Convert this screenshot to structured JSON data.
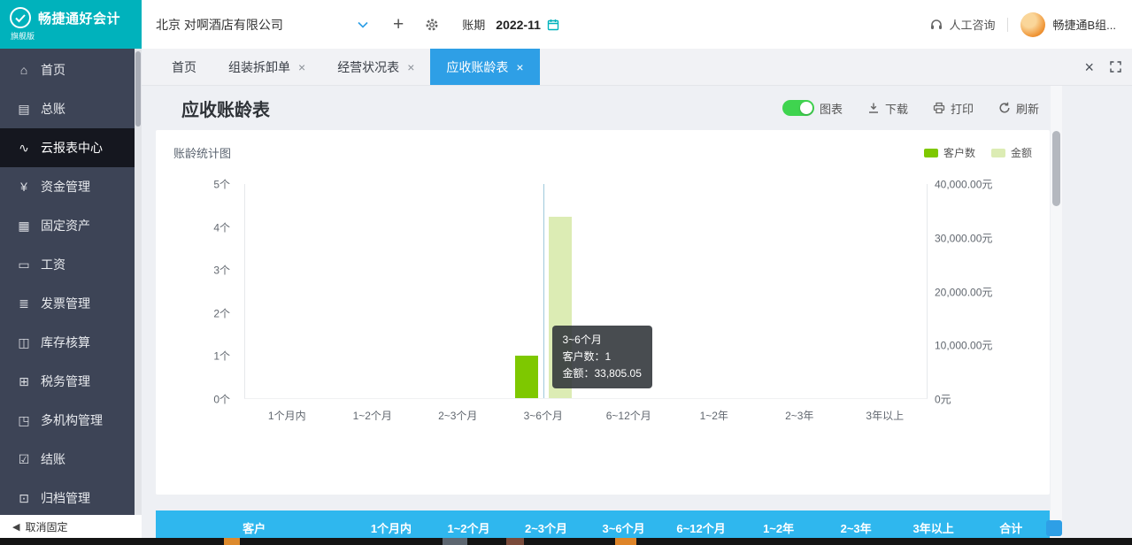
{
  "colors": {
    "accent_blue": "#2e9fe6",
    "brand_teal": "#00b2bc",
    "sidebar_bg": "#3d4456",
    "sidebar_active_bg": "#15171f",
    "table_header_bg": "#2fb7ee",
    "toggle_on_green": "#3fd44f",
    "series_customers_green": "#7ec800",
    "series_amount_light_green": "#dcecb4"
  },
  "app": {
    "brand": "畅捷通好会计",
    "edition": "旗舰版"
  },
  "topbar": {
    "company": "北京 对啊酒店有限公司",
    "period_label": "账期",
    "period_value": "2022-11",
    "support_label": "人工咨询",
    "username": "畅捷通B组..."
  },
  "sidebar": {
    "pin_label": "取消固定",
    "pin_arrow": "◀",
    "items": [
      {
        "key": "home",
        "label": "首页",
        "icon": "home-icon",
        "glyph": "⌂",
        "active": false
      },
      {
        "key": "general-ledger",
        "label": "总账",
        "icon": "ledger-icon",
        "glyph": "▤",
        "active": false
      },
      {
        "key": "cloud-reports",
        "label": "云报表中心",
        "icon": "cloud-report-icon",
        "glyph": "∿",
        "active": true
      },
      {
        "key": "funds",
        "label": "资金管理",
        "icon": "funds-icon",
        "glyph": "¥",
        "active": false
      },
      {
        "key": "fixed-assets",
        "label": "固定资产",
        "icon": "fixed-assets-icon",
        "glyph": "▦",
        "active": false
      },
      {
        "key": "payroll",
        "label": "工资",
        "icon": "payroll-icon",
        "glyph": "▭",
        "active": false
      },
      {
        "key": "invoices",
        "label": "发票管理",
        "icon": "invoice-icon",
        "glyph": "≣",
        "active": false
      },
      {
        "key": "inventory",
        "label": "库存核算",
        "icon": "inventory-icon",
        "glyph": "◫",
        "active": false
      },
      {
        "key": "tax",
        "label": "税务管理",
        "icon": "tax-icon",
        "glyph": "⊞",
        "active": false
      },
      {
        "key": "multi-org",
        "label": "多机构管理",
        "icon": "multi-org-icon",
        "glyph": "◳",
        "active": false
      },
      {
        "key": "closing",
        "label": "结账",
        "icon": "closing-icon",
        "glyph": "☑",
        "active": false
      },
      {
        "key": "archive",
        "label": "归档管理",
        "icon": "archive-icon",
        "glyph": "⊡",
        "active": false
      }
    ]
  },
  "tabs": [
    {
      "label": "首页",
      "closable": false,
      "active": false
    },
    {
      "label": "组装拆卸单",
      "closable": true,
      "active": false
    },
    {
      "label": "经营状况表",
      "closable": true,
      "active": false
    },
    {
      "label": "应收账龄表",
      "closable": true,
      "active": true
    }
  ],
  "page": {
    "title": "应收账龄表",
    "toolbar": {
      "chart_toggle_label": "图表",
      "download_label": "下载",
      "print_label": "打印",
      "refresh_label": "刷新"
    }
  },
  "chart_data": {
    "type": "bar",
    "title": "账龄统计图",
    "legend_position": "top-right",
    "grid": false,
    "categories": [
      "1个月内",
      "1~2个月",
      "2~3个月",
      "3~6个月",
      "6~12个月",
      "1~2年",
      "2~3年",
      "3年以上"
    ],
    "series": [
      {
        "name": "客户数",
        "axis": "left",
        "color": "#7ec800",
        "values": [
          0,
          0,
          0,
          1,
          0,
          0,
          0,
          0
        ]
      },
      {
        "name": "金额",
        "axis": "right",
        "color": "#dcecb4",
        "values": [
          0,
          0,
          0,
          33805.05,
          0,
          0,
          0,
          0
        ]
      }
    ],
    "left_axis": {
      "max": 5,
      "ticks": [
        "0个",
        "1个",
        "2个",
        "3个",
        "4个",
        "5个"
      ]
    },
    "right_axis": {
      "max": 40000,
      "ticks": [
        "0元",
        "10,000.00元",
        "20,000.00元",
        "30,000.00元",
        "40,000.00元"
      ]
    },
    "highlighted_category": "3~6个月",
    "tooltip": {
      "title": "3~6个月",
      "customers": "客户数：1",
      "amount": "金额：33,805.05"
    }
  },
  "table": {
    "headers": [
      "客户",
      "1个月内",
      "1~2个月",
      "2~3个月",
      "3~6个月",
      "6~12个月",
      "1~2年",
      "2~3年",
      "3年以上",
      "合计"
    ]
  }
}
